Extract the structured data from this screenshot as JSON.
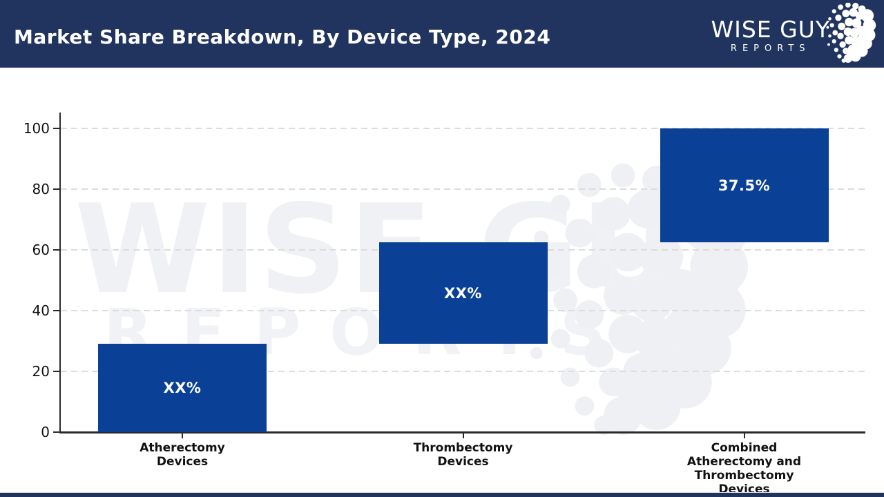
{
  "header": {
    "title": "Market Share Breakdown, By Device Type, 2024",
    "logo": {
      "line1": "WISE GUY",
      "line2": "REPORTS"
    }
  },
  "watermark": {
    "line1": "WISE GUY",
    "line2": "REPORTS"
  },
  "chart_data": {
    "type": "bar",
    "subtype": "waterfall",
    "title": "Market Share Breakdown, By Device Type, 2024",
    "categories": [
      "Atherectomy Devices",
      "Thrombectomy Devices",
      "Combined Atherectomy and Thrombectomy Devices"
    ],
    "category_label_lines": [
      [
        "Atherectomy",
        "Devices"
      ],
      [
        "Thrombectomy",
        "Devices"
      ],
      [
        "Combined",
        "Atherectomy and",
        "Thrombectomy",
        "Devices"
      ]
    ],
    "segments": [
      {
        "category": "Atherectomy Devices",
        "start": 0,
        "end": 29,
        "label": "XX%"
      },
      {
        "category": "Thrombectomy Devices",
        "start": 29,
        "end": 62.5,
        "label": "XX%"
      },
      {
        "category": "Combined Atherectomy and Thrombectomy Devices",
        "start": 62.5,
        "end": 100,
        "label": "37.5%"
      }
    ],
    "ylim": [
      0,
      100
    ],
    "yticks": [
      0,
      20,
      40,
      60,
      80,
      100
    ],
    "xlabel": "",
    "ylabel": "",
    "grid": "horizontal-dashed",
    "legend": "none",
    "bar_color": "#0a4196",
    "value_label_color": "#ffffff",
    "axis_color": "#2a2a2a"
  }
}
